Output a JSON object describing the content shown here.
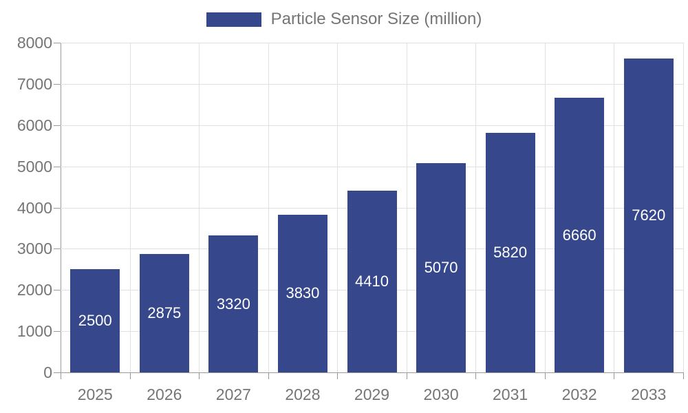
{
  "chart_data": {
    "type": "bar",
    "title": "Particle Sensor Size (million)",
    "categories": [
      "2025",
      "2026",
      "2027",
      "2028",
      "2029",
      "2030",
      "2031",
      "2032",
      "2033"
    ],
    "values": [
      2500,
      2875,
      3320,
      3830,
      4410,
      5070,
      5820,
      6660,
      7620
    ],
    "xlabel": "",
    "ylabel": "",
    "ylim": [
      0,
      8000
    ],
    "ytick_interval": 1000,
    "y_ticks": [
      0,
      1000,
      2000,
      3000,
      4000,
      5000,
      6000,
      7000,
      8000
    ],
    "grid": true,
    "legend_position": "top-center",
    "value_label_position": "inside-center",
    "colors": {
      "bar": "#36478C",
      "grid_line": "#E0E0E4",
      "axis_line": "#999999",
      "tick_mark": "#999999",
      "axis_text": "#757575",
      "legend_text": "#757575",
      "value_text": "#FFFFFF",
      "background": "#FFFFFF"
    }
  }
}
